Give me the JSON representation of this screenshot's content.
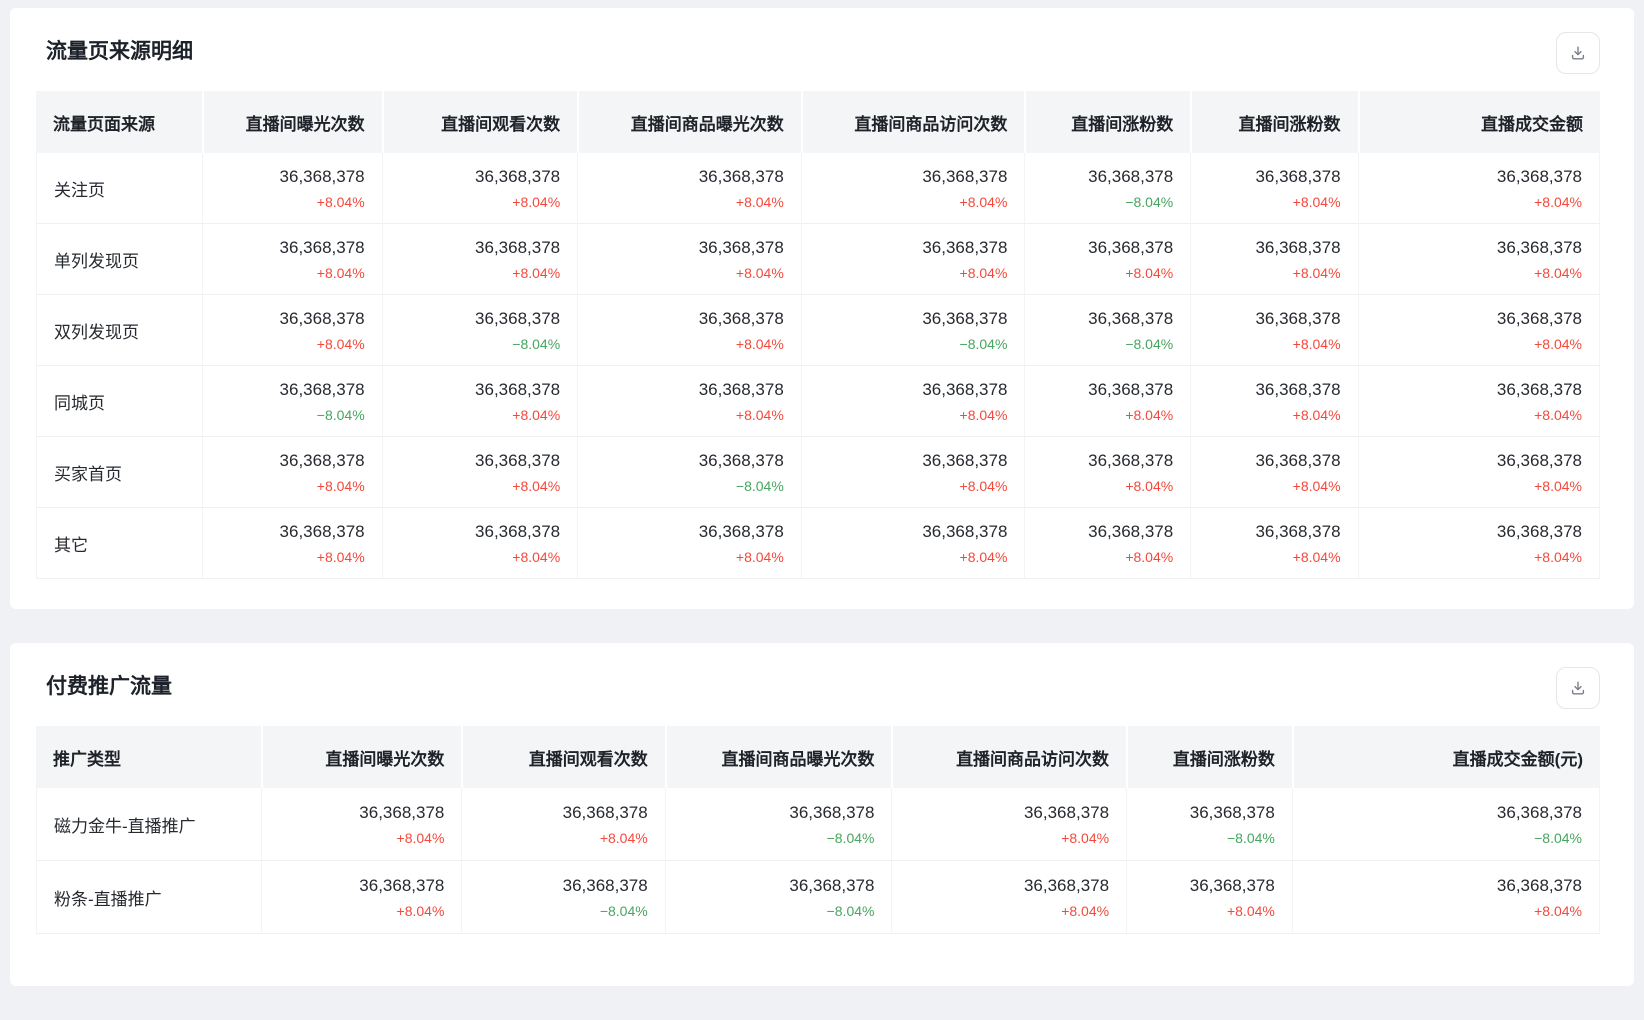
{
  "colors": {
    "positive_delta": "#f5483b",
    "negative_delta": "#46a55f",
    "page_background": "#eff1f5",
    "card_background": "#ffffff",
    "header_background": "#f4f5f7"
  },
  "tables": [
    {
      "title": "流量页来源明细",
      "download_icon": "download-icon",
      "columns": [
        "流量页面来源",
        "直播间曝光次数",
        "直播间观看次数",
        "直播间商品曝光次数",
        "直播间商品访问次数",
        "直播间涨粉数",
        "直播间涨粉数",
        "直播成交金额"
      ],
      "rows": [
        {
          "label": "关注页",
          "cells": [
            {
              "value": "36,368,378",
              "delta": "+8.04%",
              "trend": "up"
            },
            {
              "value": "36,368,378",
              "delta": "+8.04%",
              "trend": "up"
            },
            {
              "value": "36,368,378",
              "delta": "+8.04%",
              "trend": "up"
            },
            {
              "value": "36,368,378",
              "delta": "+8.04%",
              "trend": "up"
            },
            {
              "value": "36,368,378",
              "delta": "−8.04%",
              "trend": "down"
            },
            {
              "value": "36,368,378",
              "delta": "+8.04%",
              "trend": "up"
            },
            {
              "value": "36,368,378",
              "delta": "+8.04%",
              "trend": "up"
            }
          ]
        },
        {
          "label": "单列发现页",
          "cells": [
            {
              "value": "36,368,378",
              "delta": "+8.04%",
              "trend": "up"
            },
            {
              "value": "36,368,378",
              "delta": "+8.04%",
              "trend": "up"
            },
            {
              "value": "36,368,378",
              "delta": "+8.04%",
              "trend": "up"
            },
            {
              "value": "36,368,378",
              "delta": "+8.04%",
              "trend": "up"
            },
            {
              "value": "36,368,378",
              "delta": "+8.04%",
              "trend": "up"
            },
            {
              "value": "36,368,378",
              "delta": "+8.04%",
              "trend": "up"
            },
            {
              "value": "36,368,378",
              "delta": "+8.04%",
              "trend": "up"
            }
          ]
        },
        {
          "label": "双列发现页",
          "cells": [
            {
              "value": "36,368,378",
              "delta": "+8.04%",
              "trend": "up"
            },
            {
              "value": "36,368,378",
              "delta": "−8.04%",
              "trend": "down"
            },
            {
              "value": "36,368,378",
              "delta": "+8.04%",
              "trend": "up"
            },
            {
              "value": "36,368,378",
              "delta": "−8.04%",
              "trend": "down"
            },
            {
              "value": "36,368,378",
              "delta": "−8.04%",
              "trend": "down"
            },
            {
              "value": "36,368,378",
              "delta": "+8.04%",
              "trend": "up"
            },
            {
              "value": "36,368,378",
              "delta": "+8.04%",
              "trend": "up"
            }
          ]
        },
        {
          "label": "同城页",
          "cells": [
            {
              "value": "36,368,378",
              "delta": "−8.04%",
              "trend": "down"
            },
            {
              "value": "36,368,378",
              "delta": "+8.04%",
              "trend": "up"
            },
            {
              "value": "36,368,378",
              "delta": "+8.04%",
              "trend": "up"
            },
            {
              "value": "36,368,378",
              "delta": "+8.04%",
              "trend": "up"
            },
            {
              "value": "36,368,378",
              "delta": "+8.04%",
              "trend": "up"
            },
            {
              "value": "36,368,378",
              "delta": "+8.04%",
              "trend": "up"
            },
            {
              "value": "36,368,378",
              "delta": "+8.04%",
              "trend": "up"
            }
          ]
        },
        {
          "label": "买家首页",
          "cells": [
            {
              "value": "36,368,378",
              "delta": "+8.04%",
              "trend": "up"
            },
            {
              "value": "36,368,378",
              "delta": "+8.04%",
              "trend": "up"
            },
            {
              "value": "36,368,378",
              "delta": "−8.04%",
              "trend": "down"
            },
            {
              "value": "36,368,378",
              "delta": "+8.04%",
              "trend": "up"
            },
            {
              "value": "36,368,378",
              "delta": "+8.04%",
              "trend": "up"
            },
            {
              "value": "36,368,378",
              "delta": "+8.04%",
              "trend": "up"
            },
            {
              "value": "36,368,378",
              "delta": "+8.04%",
              "trend": "up"
            }
          ]
        },
        {
          "label": "其它",
          "cells": [
            {
              "value": "36,368,378",
              "delta": "+8.04%",
              "trend": "up"
            },
            {
              "value": "36,368,378",
              "delta": "+8.04%",
              "trend": "up"
            },
            {
              "value": "36,368,378",
              "delta": "+8.04%",
              "trend": "up"
            },
            {
              "value": "36,368,378",
              "delta": "+8.04%",
              "trend": "up"
            },
            {
              "value": "36,368,378",
              "delta": "+8.04%",
              "trend": "up"
            },
            {
              "value": "36,368,378",
              "delta": "+8.04%",
              "trend": "up"
            },
            {
              "value": "36,368,378",
              "delta": "+8.04%",
              "trend": "up"
            }
          ]
        }
      ]
    },
    {
      "title": "付费推广流量",
      "download_icon": "download-icon",
      "columns": [
        "推广类型",
        "直播间曝光次数",
        "直播间观看次数",
        "直播间商品曝光次数",
        "直播间商品访问次数",
        "直播间涨粉数",
        "直播成交金额(元)"
      ],
      "rows": [
        {
          "label": "磁力金牛-直播推广",
          "cells": [
            {
              "value": "36,368,378",
              "delta": "+8.04%",
              "trend": "up"
            },
            {
              "value": "36,368,378",
              "delta": "+8.04%",
              "trend": "up"
            },
            {
              "value": "36,368,378",
              "delta": "−8.04%",
              "trend": "down"
            },
            {
              "value": "36,368,378",
              "delta": "+8.04%",
              "trend": "up"
            },
            {
              "value": "36,368,378",
              "delta": "−8.04%",
              "trend": "down"
            },
            {
              "value": "36,368,378",
              "delta": "−8.04%",
              "trend": "down"
            }
          ]
        },
        {
          "label": "粉条-直播推广",
          "cells": [
            {
              "value": "36,368,378",
              "delta": "+8.04%",
              "trend": "up"
            },
            {
              "value": "36,368,378",
              "delta": "−8.04%",
              "trend": "down"
            },
            {
              "value": "36,368,378",
              "delta": "−8.04%",
              "trend": "down"
            },
            {
              "value": "36,368,378",
              "delta": "+8.04%",
              "trend": "up"
            },
            {
              "value": "36,368,378",
              "delta": "+8.04%",
              "trend": "up"
            },
            {
              "value": "36,368,378",
              "delta": "+8.04%",
              "trend": "up"
            }
          ]
        }
      ]
    }
  ]
}
